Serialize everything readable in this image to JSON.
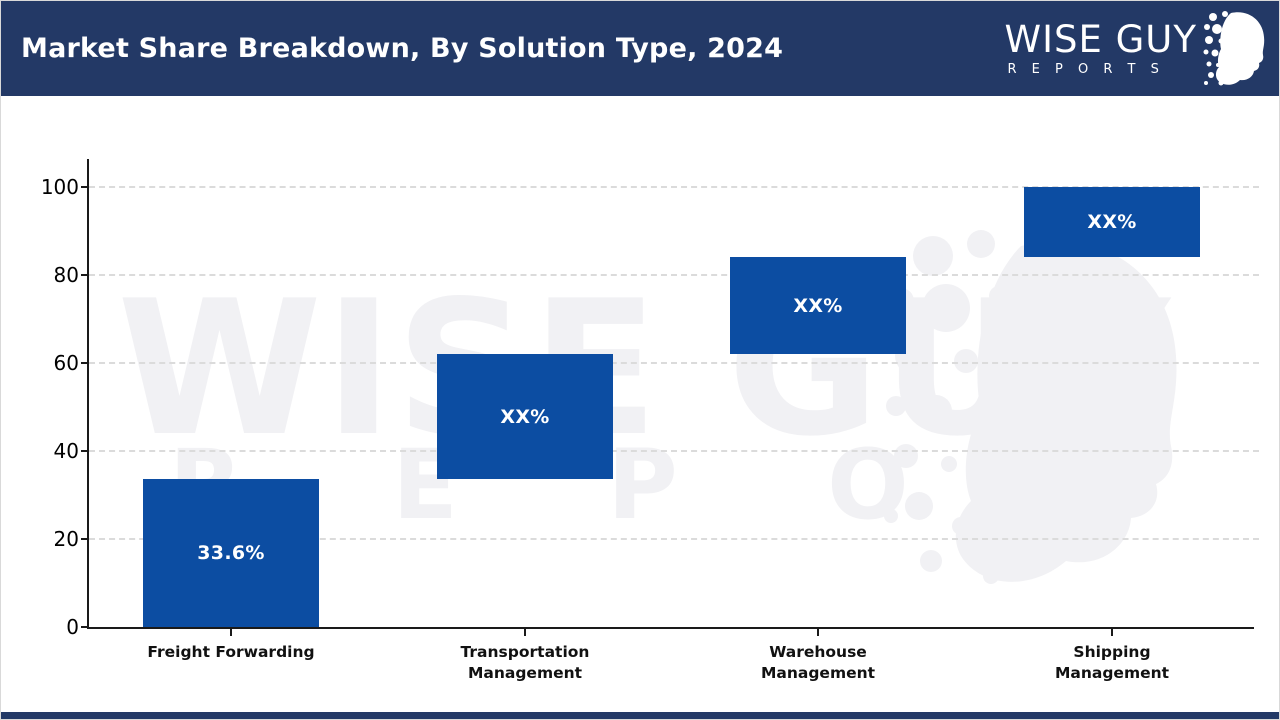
{
  "header": {
    "title": "Market Share Breakdown, By Solution Type, 2024",
    "logo_line1": "WISE GUY",
    "logo_line2": "R E P O R T S"
  },
  "watermark": {
    "line1": "WISE GUY",
    "line2": "R E P O R T S"
  },
  "chart_data": {
    "type": "bar",
    "variant": "waterfall",
    "title": "Market Share Breakdown, By Solution Type, 2024",
    "categories": [
      "Freight Forwarding",
      "Transportation Management",
      "Warehouse Management",
      "Shipping Management"
    ],
    "category_label_lines": [
      [
        "Freight Forwarding"
      ],
      [
        "Transportation",
        "Management"
      ],
      [
        "Warehouse",
        "Management"
      ],
      [
        "Shipping",
        "Management"
      ]
    ],
    "segments": [
      {
        "category": "Freight Forwarding",
        "start": 0,
        "end": 33.6,
        "label": "33.6%"
      },
      {
        "category": "Transportation Management",
        "start": 33.6,
        "end": 62,
        "label": "XX%"
      },
      {
        "category": "Warehouse Management",
        "start": 62,
        "end": 84,
        "label": "XX%"
      },
      {
        "category": "Shipping Management",
        "start": 84,
        "end": 100,
        "label": "XX%"
      }
    ],
    "ylim": [
      0,
      100
    ],
    "yticks": [
      0,
      20,
      40,
      60,
      80,
      100
    ],
    "grid": {
      "horizontal": true,
      "style": "dashed"
    },
    "legend": "none",
    "bar_color": "#0C4DA2",
    "bar_label_color": "#FFFFFF"
  },
  "colors": {
    "header_bg": "#233966",
    "footer_bg": "#233966",
    "bar": "#0C4DA2",
    "axis": "#1A1A1A",
    "gridline": "#DBDBDB",
    "watermark": "#F1F1F4"
  }
}
